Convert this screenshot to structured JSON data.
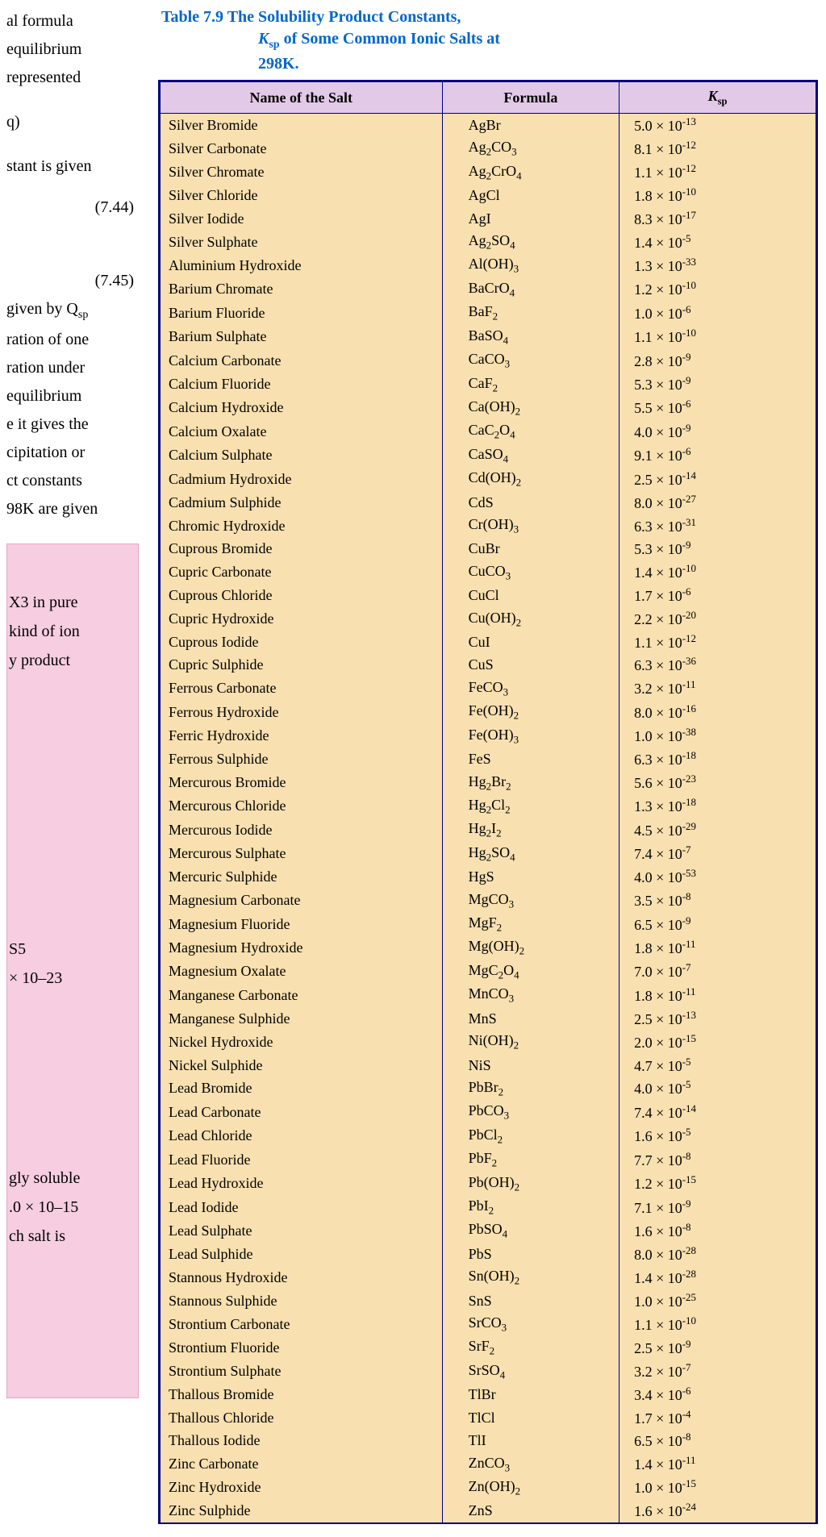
{
  "left": {
    "frag1": "al formula",
    "frag2": "equilibrium",
    "frag3": "represented",
    "frag4": "q)",
    "frag5": "stant is given",
    "eq1": "(7.44)",
    "eq2": "(7.45)",
    "frag6": "given by Q",
    "frag6sub": "sp",
    "frag7": "ration of one",
    "frag8": "ration under",
    "frag9": "equilibrium",
    "frag10": "e it gives the",
    "frag11": "cipitation or",
    "frag12": "ct constants",
    "frag13": "98K are given"
  },
  "pink": {
    "p1a": "X",
    "p1sub": "3",
    "p1b": " in pure",
    "p2": "kind of ion",
    "p3": "y product",
    "p4": "S",
    "p4sup": "5",
    "p5": "× 10",
    "p5sup": "–23",
    "p6": "gly soluble",
    "p7": ".0 × 10",
    "p7sup": "–15",
    "p8": "ch salt is"
  },
  "caption": {
    "line1": "Table 7.9 The Solubility Product Constants,",
    "line2a": "K",
    "line2sub": "sp",
    "line2b": " of Some Common Ionic Salts at",
    "line3": "298K."
  },
  "headers": {
    "col1": "Name of the Salt",
    "col2": "Formula",
    "col3a": "K",
    "col3sub": "sp"
  },
  "rows": [
    {
      "n": "Silver Bromide",
      "f": "AgBr",
      "k": "5.0 × 10",
      "e": "-13"
    },
    {
      "n": "Silver Carbonate",
      "f": "Ag<sub>2</sub>CO<sub>3</sub>",
      "k": "8.1 × 10",
      "e": "-12"
    },
    {
      "n": "Silver Chromate",
      "f": "Ag<sub>2</sub>CrO<sub>4</sub>",
      "k": "1.1 × 10",
      "e": "-12"
    },
    {
      "n": "Silver Chloride",
      "f": "AgCl",
      "k": "1.8 × 10",
      "e": "-10"
    },
    {
      "n": "Silver Iodide",
      "f": "AgI",
      "k": "8.3 × 10",
      "e": "-17"
    },
    {
      "n": "Silver Sulphate",
      "f": "Ag<sub>2</sub>SO<sub>4</sub>",
      "k": "1.4 × 10",
      "e": "-5"
    },
    {
      "n": "Aluminium Hydroxide",
      "f": "Al(OH)<sub>3</sub>",
      "k": "1.3 × 10",
      "e": "-33"
    },
    {
      "n": "Barium Chromate",
      "f": "BaCrO<sub>4</sub>",
      "k": "1.2 × 10",
      "e": "-10"
    },
    {
      "n": "Barium Fluoride",
      "f": "BaF<sub>2</sub>",
      "k": "1.0 × 10",
      "e": "-6"
    },
    {
      "n": "Barium Sulphate",
      "f": "BaSO<sub>4</sub>",
      "k": "1.1 × 10",
      "e": "-10"
    },
    {
      "n": "Calcium Carbonate",
      "f": "CaCO<sub>3</sub>",
      "k": "2.8 × 10",
      "e": "-9"
    },
    {
      "n": "Calcium Fluoride",
      "f": "CaF<sub>2</sub>",
      "k": "5.3 × 10",
      "e": "-9"
    },
    {
      "n": "Calcium Hydroxide",
      "f": "Ca(OH)<sub>2</sub>",
      "k": "5.5 × 10",
      "e": "-6"
    },
    {
      "n": "Calcium Oxalate",
      "f": "CaC<sub>2</sub>O<sub>4</sub>",
      "k": "4.0 × 10",
      "e": "-9"
    },
    {
      "n": "Calcium Sulphate",
      "f": "CaSO<sub>4</sub>",
      "k": "9.1 × 10",
      "e": "-6"
    },
    {
      "n": "Cadmium Hydroxide",
      "f": "Cd(OH)<sub>2</sub>",
      "k": "2.5 × 10",
      "e": "-14"
    },
    {
      "n": "Cadmium Sulphide",
      "f": "CdS",
      "k": "8.0 × 10",
      "e": "-27"
    },
    {
      "n": "Chromic Hydroxide",
      "f": "Cr(OH)<sub>3</sub>",
      "k": "6.3 × 10",
      "e": "-31"
    },
    {
      "n": "Cuprous Bromide",
      "f": "CuBr",
      "k": "5.3 × 10",
      "e": "-9"
    },
    {
      "n": "Cupric Carbonate",
      "f": "CuCO<sub>3</sub>",
      "k": "1.4 × 10",
      "e": "-10"
    },
    {
      "n": "Cuprous Chloride",
      "f": "CuCl",
      "k": "1.7 × 10",
      "e": "-6"
    },
    {
      "n": "Cupric Hydroxide",
      "f": "Cu(OH)<sub>2</sub>",
      "k": "2.2 × 10",
      "e": "-20"
    },
    {
      "n": "Cuprous Iodide",
      "f": "CuI",
      "k": "1.1 × 10",
      "e": "-12"
    },
    {
      "n": "Cupric Sulphide",
      "f": "CuS",
      "k": "6.3 × 10",
      "e": "-36"
    },
    {
      "n": "Ferrous Carbonate",
      "f": "FeCO<sub>3</sub>",
      "k": "3.2 × 10",
      "e": "-11"
    },
    {
      "n": "Ferrous Hydroxide",
      "f": "Fe(OH)<sub>2</sub>",
      "k": "8.0 × 10",
      "e": "-16"
    },
    {
      "n": "Ferric Hydroxide",
      "f": "Fe(OH)<sub>3</sub>",
      "k": "1.0 × 10",
      "e": "-38"
    },
    {
      "n": "Ferrous Sulphide",
      "f": "FeS",
      "k": "6.3 × 10",
      "e": "-18"
    },
    {
      "n": "Mercurous Bromide",
      "f": "Hg<sub>2</sub>Br<sub>2</sub>",
      "k": "5.6 × 10",
      "e": "-23"
    },
    {
      "n": "Mercurous Chloride",
      "f": "Hg<sub>2</sub>Cl<sub>2</sub>",
      "k": "1.3 × 10",
      "e": "-18"
    },
    {
      "n": "Mercurous Iodide",
      "f": "Hg<sub>2</sub>I<sub>2</sub>",
      "k": "4.5 × 10",
      "e": "-29"
    },
    {
      "n": "Mercurous Sulphate",
      "f": "Hg<sub>2</sub>SO<sub>4</sub>",
      "k": "7.4 × 10",
      "e": "-7"
    },
    {
      "n": "Mercuric Sulphide",
      "f": "HgS",
      "k": "4.0 × 10",
      "e": "-53"
    },
    {
      "n": "Magnesium Carbonate",
      "f": "MgCO<sub>3</sub>",
      "k": "3.5 × 10",
      "e": "-8"
    },
    {
      "n": "Magnesium Fluoride",
      "f": "MgF<sub>2</sub>",
      "k": "6.5 × 10",
      "e": "-9"
    },
    {
      "n": "Magnesium Hydroxide",
      "f": "Mg(OH)<sub>2</sub>",
      "k": "1.8 × 10",
      "e": "-11"
    },
    {
      "n": "Magnesium Oxalate",
      "f": "MgC<sub>2</sub>O<sub>4</sub>",
      "k": "7.0 × 10",
      "e": "-7"
    },
    {
      "n": "Manganese Carbonate",
      "f": "MnCO<sub>3</sub>",
      "k": "1.8 × 10",
      "e": "-11"
    },
    {
      "n": "Manganese Sulphide",
      "f": "MnS",
      "k": "2.5 × 10",
      "e": "-13"
    },
    {
      "n": "Nickel Hydroxide",
      "f": "Ni(OH)<sub>2</sub>",
      "k": "2.0 × 10",
      "e": "-15"
    },
    {
      "n": "Nickel Sulphide",
      "f": "NiS",
      "k": "4.7 × 10",
      "e": "-5"
    },
    {
      "n": "Lead Bromide",
      "f": "PbBr<sub>2</sub>",
      "k": "4.0 × 10",
      "e": "-5"
    },
    {
      "n": "Lead Carbonate",
      "f": "PbCO<sub>3</sub>",
      "k": "7.4 × 10",
      "e": "-14"
    },
    {
      "n": "Lead Chloride",
      "f": "PbCl<sub>2</sub>",
      "k": "1.6 × 10",
      "e": "-5"
    },
    {
      "n": "Lead Fluoride",
      "f": "PbF<sub>2</sub>",
      "k": "7.7 × 10",
      "e": "-8"
    },
    {
      "n": "Lead Hydroxide",
      "f": "Pb(OH)<sub>2</sub>",
      "k": "1.2 × 10",
      "e": "-15"
    },
    {
      "n": "Lead Iodide",
      "f": "PbI<sub>2</sub>",
      "k": "7.1 × 10",
      "e": "-9"
    },
    {
      "n": "Lead Sulphate",
      "f": "PbSO<sub>4</sub>",
      "k": "1.6 × 10",
      "e": "-8"
    },
    {
      "n": "Lead Sulphide",
      "f": "PbS",
      "k": "8.0 × 10",
      "e": "-28"
    },
    {
      "n": "Stannous Hydroxide",
      "f": "Sn(OH)<sub>2</sub>",
      "k": "1.4 × 10",
      "e": "-28"
    },
    {
      "n": "Stannous Sulphide",
      "f": "SnS",
      "k": "1.0 × 10",
      "e": "-25"
    },
    {
      "n": "Strontium Carbonate",
      "f": "SrCO<sub>3</sub>",
      "k": "1.1 × 10",
      "e": "-10"
    },
    {
      "n": "Strontium Fluoride",
      "f": "SrF<sub>2</sub>",
      "k": "2.5 × 10",
      "e": "-9"
    },
    {
      "n": "Strontium Sulphate",
      "f": "SrSO<sub>4</sub>",
      "k": "3.2 × 10",
      "e": "-7"
    },
    {
      "n": "Thallous Bromide",
      "f": "TlBr",
      "k": "3.4 × 10",
      "e": "-6"
    },
    {
      "n": "Thallous Chloride",
      "f": "TlCl",
      "k": "1.7 × 10",
      "e": "-4"
    },
    {
      "n": "Thallous Iodide",
      "f": "TlI",
      "k": "6.5 × 10",
      "e": "-8"
    },
    {
      "n": "Zinc Carbonate",
      "f": "ZnCO<sub>3</sub>",
      "k": "1.4 × 10",
      "e": "-11"
    },
    {
      "n": "Zinc Hydroxide",
      "f": "Zn(OH)<sub>2</sub>",
      "k": "1.0 × 10",
      "e": "-15"
    },
    {
      "n": "Zinc Sulphide",
      "f": "ZnS",
      "k": "1.6 × 10",
      "e": "-24"
    }
  ],
  "colors": {
    "caption": "#0066cc",
    "table_bg": "#f8e0b0",
    "header_bg": "#e3c9e8",
    "border": "#000080",
    "pink_bg": "#f6cde1"
  }
}
